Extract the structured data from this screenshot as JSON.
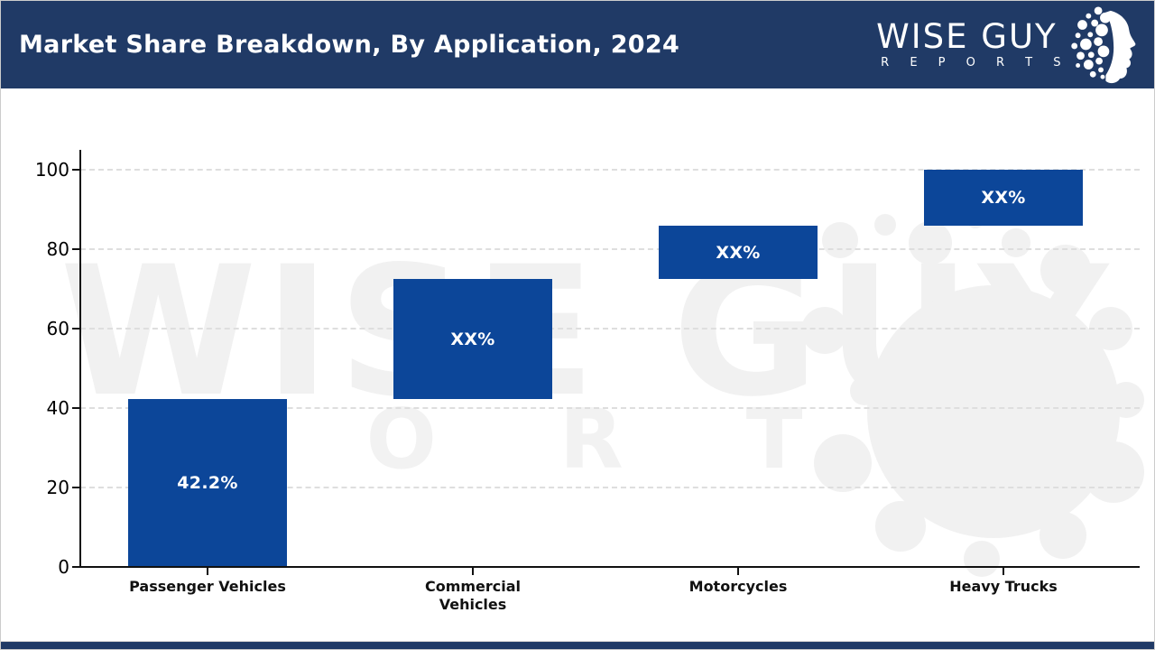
{
  "header": {
    "title": "Market Share Breakdown, By Application, 2024",
    "logo": {
      "line1": "WISE GUY",
      "line2": "R E P O R T S"
    }
  },
  "watermark": {
    "line1": "WISE GUY",
    "line2": "P O R T S"
  },
  "chart_data": {
    "type": "bar",
    "subtype": "floating-waterfall",
    "title": "Market Share Breakdown, By Application, 2024",
    "categories": [
      "Passenger Vehicles",
      "Commercial Vehicles",
      "Motorcycles",
      "Heavy Trucks"
    ],
    "category_lines": [
      [
        "Passenger Vehicles"
      ],
      [
        "Commercial",
        "Vehicles"
      ],
      [
        "Motorcycles"
      ],
      [
        "Heavy Trucks"
      ]
    ],
    "segments": [
      {
        "category": "Passenger Vehicles",
        "start": 0,
        "end": 42.2,
        "value_pct": 42.2,
        "label": "42.2%"
      },
      {
        "category": "Commercial Vehicles",
        "start": 42.2,
        "end": 72.5,
        "value_pct": 30.3,
        "label": "XX%"
      },
      {
        "category": "Motorcycles",
        "start": 72.5,
        "end": 85.9,
        "value_pct": 13.4,
        "label": "XX%"
      },
      {
        "category": "Heavy Trucks",
        "start": 85.9,
        "end": 100,
        "value_pct": 14.1,
        "label": "XX%"
      }
    ],
    "ylim": [
      0,
      100
    ],
    "yticks": [
      0,
      20,
      40,
      60,
      80,
      100
    ],
    "grid": "horizontal-dashed",
    "legend": "none",
    "xlabel": "",
    "ylabel": "",
    "bar_color": "#0c4699"
  },
  "colors": {
    "header_bg": "#203a66",
    "bar": "#0c4699",
    "axis": "#111111",
    "gridline": "#dedede",
    "watermark": "#f1f1f1"
  }
}
